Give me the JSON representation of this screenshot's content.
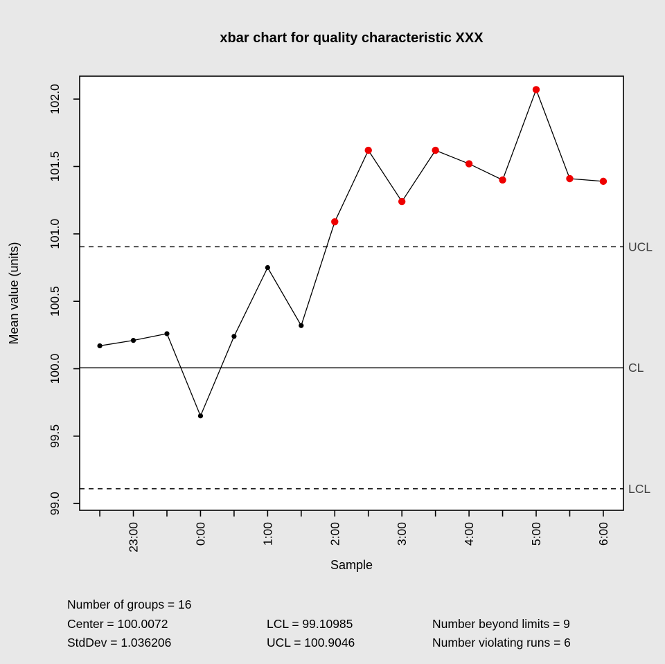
{
  "title": "xbar chart for quality characteristic XXX",
  "chart_data": {
    "type": "line",
    "title": "xbar chart for quality characteristic XXX",
    "xlabel": "Sample",
    "ylabel": "Mean value (units)",
    "ylim": [
      99.0,
      102.0
    ],
    "yticks": [
      99.0,
      99.5,
      100.0,
      100.5,
      101.0,
      101.5,
      102.0
    ],
    "xticks": [
      {
        "pos": 2,
        "label": "23:00"
      },
      {
        "pos": 4,
        "label": "0:00"
      },
      {
        "pos": 6,
        "label": "1:00"
      },
      {
        "pos": 8,
        "label": "2:00"
      },
      {
        "pos": 10,
        "label": "3:00"
      },
      {
        "pos": 12,
        "label": "4:00"
      },
      {
        "pos": 14,
        "label": "5:00"
      },
      {
        "pos": 16,
        "label": "6:00"
      }
    ],
    "n_samples": 16,
    "samples": [
      {
        "x": 1,
        "mean": 100.17,
        "beyond_limits": false
      },
      {
        "x": 2,
        "mean": 100.21,
        "beyond_limits": false
      },
      {
        "x": 3,
        "mean": 100.26,
        "beyond_limits": false
      },
      {
        "x": 4,
        "mean": 99.65,
        "beyond_limits": false
      },
      {
        "x": 5,
        "mean": 100.24,
        "beyond_limits": false
      },
      {
        "x": 6,
        "mean": 100.75,
        "beyond_limits": false
      },
      {
        "x": 7,
        "mean": 100.32,
        "beyond_limits": false
      },
      {
        "x": 8,
        "mean": 101.09,
        "beyond_limits": true
      },
      {
        "x": 9,
        "mean": 101.62,
        "beyond_limits": true
      },
      {
        "x": 10,
        "mean": 101.24,
        "beyond_limits": true
      },
      {
        "x": 11,
        "mean": 101.62,
        "beyond_limits": true
      },
      {
        "x": 12,
        "mean": 101.52,
        "beyond_limits": true
      },
      {
        "x": 13,
        "mean": 101.4,
        "beyond_limits": true
      },
      {
        "x": 14,
        "mean": 102.07,
        "beyond_limits": true
      },
      {
        "x": 15,
        "mean": 101.41,
        "beyond_limits": true
      },
      {
        "x": 16,
        "mean": 101.39,
        "beyond_limits": true
      }
    ],
    "control_lines": {
      "ucl": {
        "value": 100.9046,
        "label": "UCL",
        "style": "dashed"
      },
      "cl": {
        "value": 100.0072,
        "label": "CL",
        "style": "solid"
      },
      "lcl": {
        "value": 99.10985,
        "label": "LCL",
        "style": "dashed"
      }
    },
    "legend_position": "right-of-lines",
    "grid": false,
    "colors": {
      "beyond_limits": "#ee0000",
      "in_control": "#000000",
      "line_label": "#3f3f3f",
      "plot_background": "#ffffff",
      "figure_background": "#e8e8e8"
    }
  },
  "stats": {
    "rows": [
      {
        "col1": "Number of groups = 16",
        "col2": "",
        "col3": ""
      },
      {
        "col1": "Center = 100.0072",
        "col2": "LCL = 99.10985",
        "col3": "Number beyond limits = 9"
      },
      {
        "col1": "StdDev = 1.036206",
        "col2": "UCL = 100.9046",
        "col3": "Number violating runs = 6"
      }
    ]
  }
}
